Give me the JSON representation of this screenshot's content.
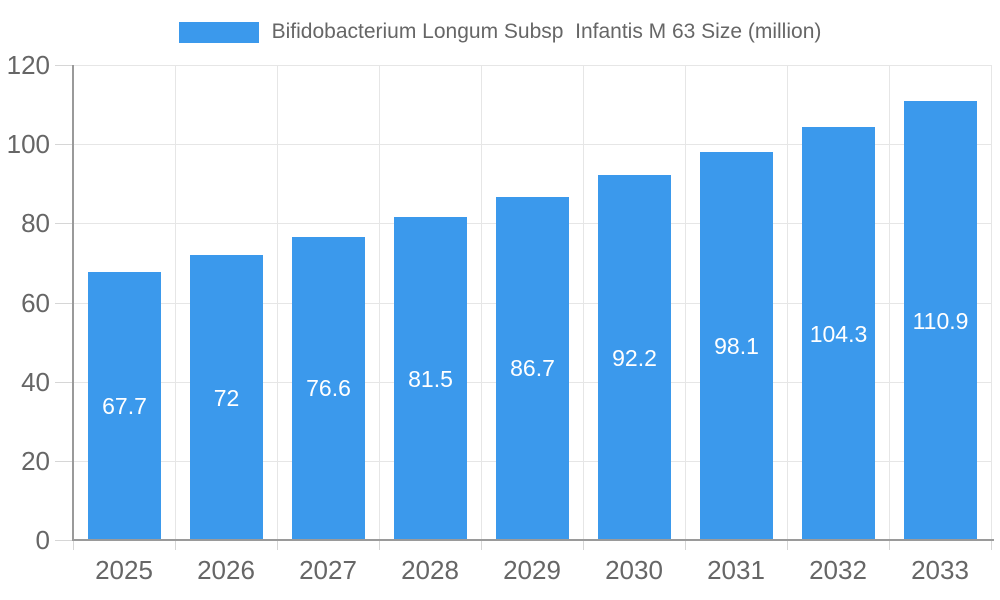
{
  "legend": {
    "label": "Bifidobacterium Longum Subsp  Infantis M 63 Size (million)",
    "position": "top"
  },
  "chart_data": {
    "type": "bar",
    "title": "",
    "xlabel": "",
    "ylabel": "",
    "categories": [
      "2025",
      "2026",
      "2027",
      "2028",
      "2029",
      "2030",
      "2031",
      "2032",
      "2033"
    ],
    "series": [
      {
        "name": "Bifidobacterium Longum Subsp  Infantis M 63 Size (million)",
        "values": [
          67.7,
          72,
          76.6,
          81.5,
          86.7,
          92.2,
          98.1,
          104.3,
          110.9
        ]
      }
    ],
    "data_labels": [
      "67.7",
      "72",
      "76.6",
      "81.5",
      "86.7",
      "92.2",
      "98.1",
      "104.3",
      "110.9"
    ],
    "ylim": [
      0,
      120
    ],
    "yticks": [
      0,
      20,
      40,
      60,
      80,
      100,
      120
    ],
    "grid": true,
    "legend_position": "top",
    "colors": {
      "bar": "#3B99EC",
      "grid": "#E6E6E6",
      "tick": "#D6D6D6",
      "axis": "#9A9A9A",
      "tick_text": "#666666",
      "legend_text": "#666666",
      "data_label_text": "#FFFFFF",
      "background": "#FFFFFF"
    }
  }
}
